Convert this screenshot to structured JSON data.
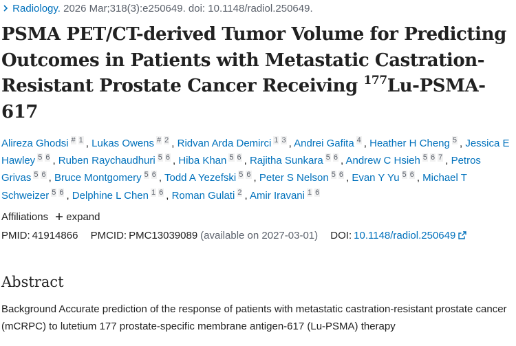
{
  "header": {
    "journal": "Radiology.",
    "citation": "2026 Mar;318(3):e250649. doi: 10.1148/radiol.250649."
  },
  "title": {
    "main": "PSMA PET/CT-derived Tumor Volume for Predicting Outcomes in Patients with Metastatic Castration-Resistant Prostate Cancer Receiving ",
    "sup": "177",
    "end": "Lu-PSMA-617"
  },
  "author_separator": ",",
  "authors": [
    {
      "name": "Alireza Ghodsi",
      "affs": [
        "#",
        "1"
      ]
    },
    {
      "name": "Lukas Owens",
      "affs": [
        "#",
        "2"
      ]
    },
    {
      "name": "Ridvan Arda Demirci",
      "affs": [
        "1",
        "3"
      ]
    },
    {
      "name": "Andrei Gafita",
      "affs": [
        "4"
      ]
    },
    {
      "name": "Heather H Cheng",
      "affs": [
        "5"
      ]
    },
    {
      "name": "Jessica E Hawley",
      "affs": [
        "5",
        "6"
      ]
    },
    {
      "name": "Ruben Raychaudhuri",
      "affs": [
        "5",
        "6"
      ]
    },
    {
      "name": "Hiba Khan",
      "affs": [
        "5",
        "6"
      ]
    },
    {
      "name": "Rajitha Sunkara",
      "affs": [
        "5",
        "6"
      ]
    },
    {
      "name": "Andrew C Hsieh",
      "affs": [
        "5",
        "6",
        "7"
      ]
    },
    {
      "name": "Petros Grivas",
      "affs": [
        "5",
        "6"
      ]
    },
    {
      "name": "Bruce Montgomery",
      "affs": [
        "5",
        "6"
      ]
    },
    {
      "name": "Todd A Yezefski",
      "affs": [
        "5",
        "6"
      ]
    },
    {
      "name": "Peter S Nelson",
      "affs": [
        "5",
        "6"
      ]
    },
    {
      "name": "Evan Y Yu",
      "affs": [
        "5",
        "6"
      ]
    },
    {
      "name": "Michael T Schweizer",
      "affs": [
        "5",
        "6"
      ]
    },
    {
      "name": "Delphine L Chen",
      "affs": [
        "1",
        "6"
      ]
    },
    {
      "name": "Roman Gulati",
      "affs": [
        "2"
      ]
    },
    {
      "name": "Amir Iravani",
      "affs": [
        "1",
        "6"
      ]
    }
  ],
  "affiliations": {
    "label": "Affiliations",
    "toggle": "expand"
  },
  "identifiers": {
    "pmid_label": "PMID:",
    "pmid": "41914866",
    "pmcid_label": "PMCID:",
    "pmcid": "PMC13039089",
    "pmc_note": "(available on 2027-03-01)",
    "doi_label": "DOI:",
    "doi": "10.1148/radiol.250649"
  },
  "abstract": {
    "heading": "Abstract",
    "text": "Background Accurate prediction of the response of patients with metastatic castration-resistant prostate cancer (mCRPC) to lutetium 177 prostate-specific membrane antigen-617 (Lu-PSMA) therapy"
  }
}
